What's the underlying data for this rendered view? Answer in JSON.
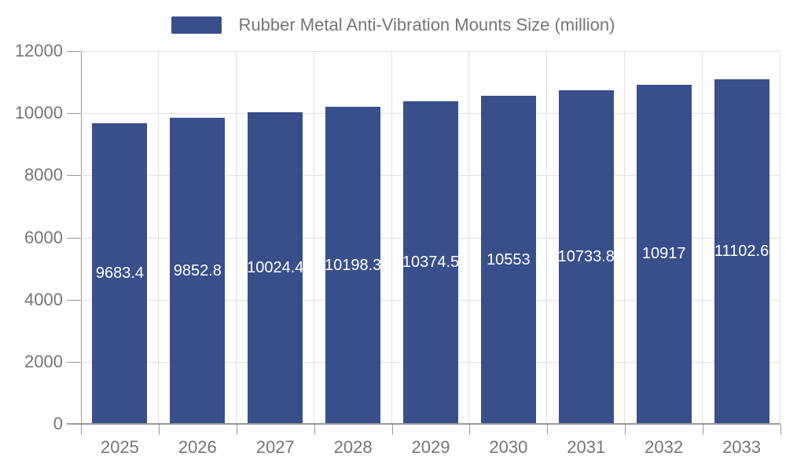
{
  "chart_data": {
    "type": "bar",
    "legend": "Rubber Metal Anti-Vibration Mounts Size (million)",
    "categories": [
      "2025",
      "2026",
      "2027",
      "2028",
      "2029",
      "2030",
      "2031",
      "2032",
      "2033"
    ],
    "values": [
      9683.4,
      9852.8,
      10024.4,
      10198.3,
      10374.5,
      10553,
      10733.8,
      10917,
      11102.6
    ],
    "bar_labels": [
      "9683.4",
      "9852.8",
      "10024.4",
      "10198.3",
      "10374.5",
      "10553",
      "10733.8",
      "10917",
      "11102.6"
    ],
    "title": "",
    "xlabel": "",
    "ylabel": "",
    "ylim": [
      0,
      12000
    ],
    "yticks": [
      0,
      2000,
      4000,
      6000,
      8000,
      10000,
      12000
    ],
    "grid": true,
    "legend_position": "top",
    "colors": {
      "bar": "#394F8C",
      "grid_line": "#e0e0e6",
      "axis_line": "#999999",
      "tick_text": "#757575",
      "legend_text": "#757575",
      "bar_label_text": "#ffffff",
      "background": "#ffffff"
    }
  }
}
